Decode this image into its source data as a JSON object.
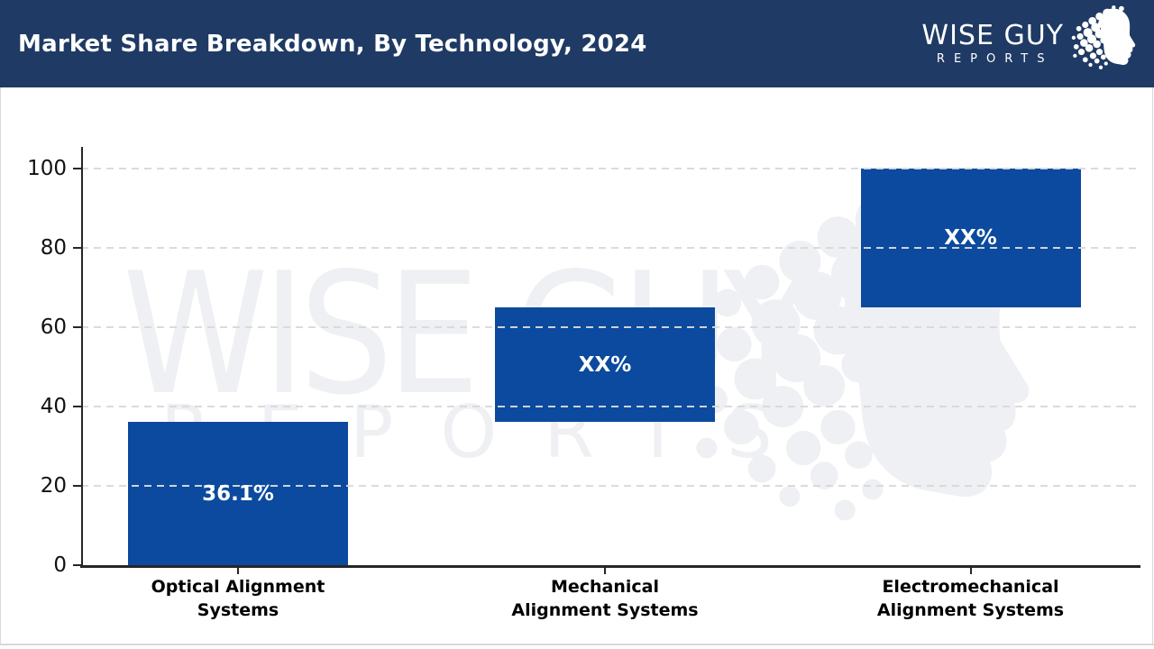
{
  "header": {
    "title": "Market Share Breakdown, By Technology, 2024",
    "background_color": "#1f3a64",
    "logo": {
      "wordmark": "WISE GUY",
      "subtitle": "REPORTS"
    }
  },
  "watermark": {
    "wordmark": "WISE GUY",
    "subtitle": "REPORTS"
  },
  "chart_data": {
    "type": "bar",
    "subtype": "waterfall",
    "title": "Market Share Breakdown, By Technology, 2024",
    "categories": [
      "Optical Alignment Systems",
      "Mechanical Alignment Systems",
      "Electromechanical Alignment Systems"
    ],
    "category_label_lines": [
      [
        "Optical Alignment",
        "Systems"
      ],
      [
        "Mechanical",
        "Alignment Systems"
      ],
      [
        "Electromechanical",
        "Alignment Systems"
      ]
    ],
    "segments": [
      {
        "category": "Optical Alignment Systems",
        "start": 0,
        "end": 36.1,
        "label": "36.1%"
      },
      {
        "category": "Mechanical Alignment Systems",
        "start": 36.1,
        "end": 65,
        "label": "XX%"
      },
      {
        "category": "Electromechanical Alignment Systems",
        "start": 65,
        "end": 100,
        "label": "XX%"
      }
    ],
    "ylim": [
      0,
      100
    ],
    "yticks": [
      0,
      20,
      40,
      60,
      80,
      100
    ],
    "xlabel": "",
    "ylabel": "",
    "grid": "horizontal-dashed",
    "legend": "none",
    "bar_color": "#0b4a9e",
    "value_label_color": "#ffffff"
  }
}
